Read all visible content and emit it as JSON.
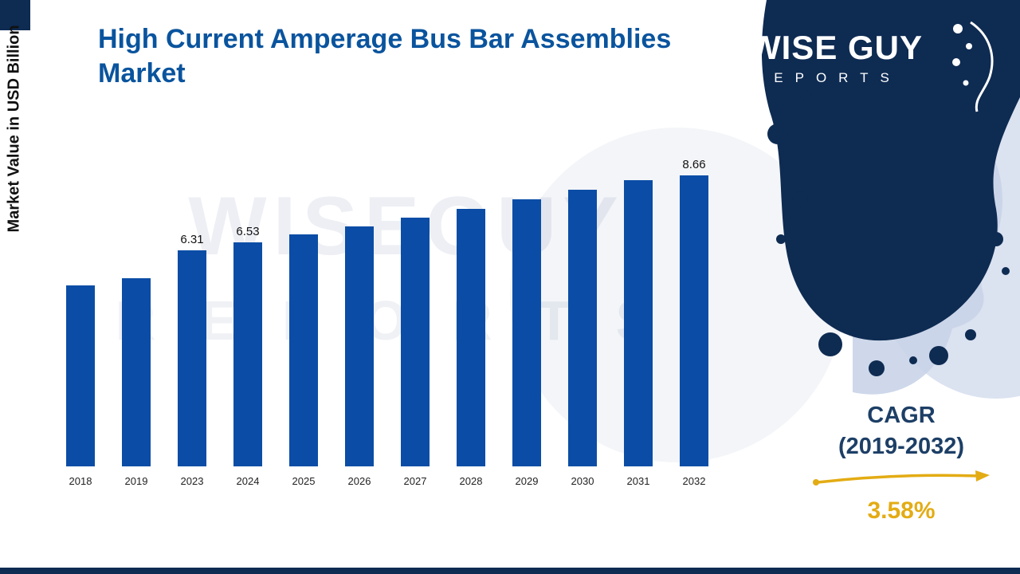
{
  "title": "High Current Amperage Bus Bar Assemblies Market",
  "y_axis_label": "Market Value in USD Billion",
  "watermark": {
    "line1": "WISEGUY",
    "line2": "REPORTS"
  },
  "logo": {
    "line1": "WISE GUY",
    "line2": "REPORTS"
  },
  "cagr": {
    "label": "CAGR",
    "range": "(2019-2032)",
    "value": "3.58%"
  },
  "colors": {
    "bar": "#0b4da6",
    "title": "#0a549e",
    "navy": "#0e2b52",
    "gold": "#e3ac14",
    "cagr_text": "#1d3f66"
  },
  "chart_data": {
    "type": "bar",
    "title": "High Current Amperage Bus Bar Assemblies Market",
    "xlabel": "",
    "ylabel": "Market Value in USD Billion",
    "ylim": [
      0,
      9
    ],
    "grid": false,
    "categories": [
      "2018",
      "2019",
      "2023",
      "2024",
      "2025",
      "2026",
      "2027",
      "2028",
      "2029",
      "2030",
      "2031",
      "2032"
    ],
    "values": [
      5.29,
      5.48,
      6.31,
      6.53,
      6.76,
      7.01,
      7.26,
      7.52,
      7.79,
      8.07,
      8.35,
      8.66
    ],
    "data_labels": {
      "2023": "6.31",
      "2024": "6.53",
      "2032": "8.66"
    }
  }
}
